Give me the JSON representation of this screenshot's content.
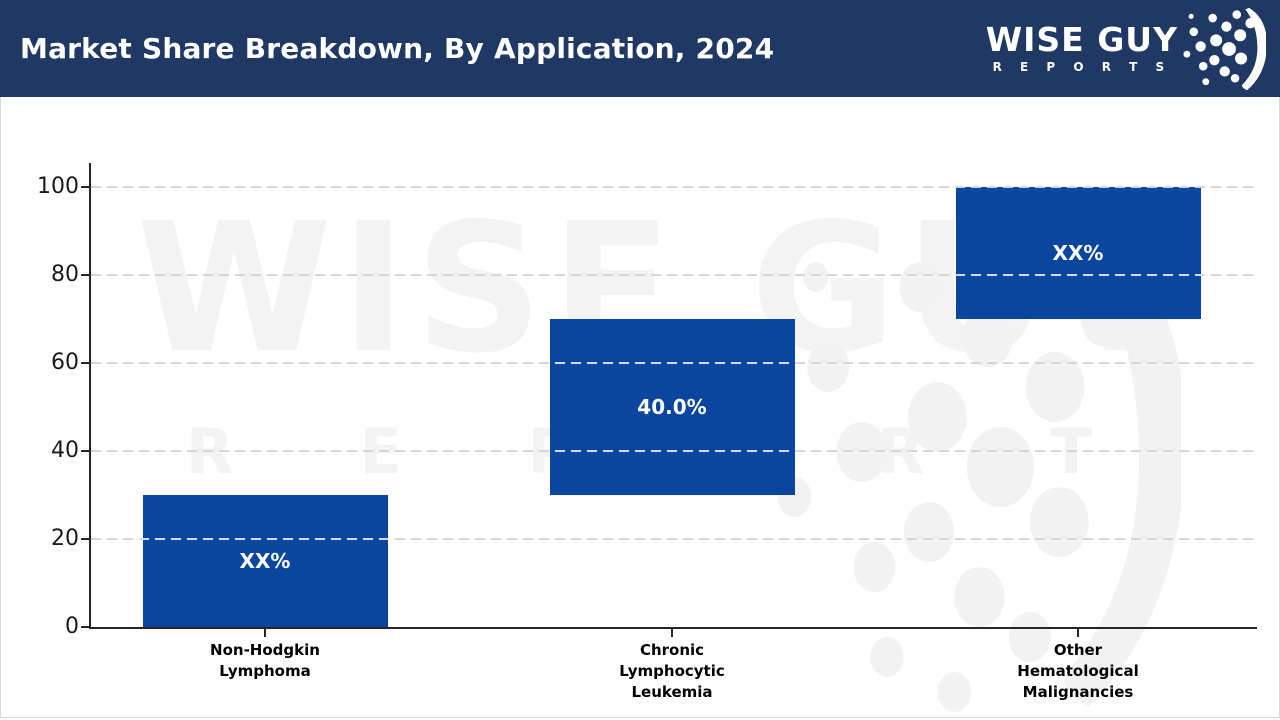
{
  "header": {
    "title": "Market Share Breakdown, By Application, 2024",
    "logo_line1": "WISE GUY",
    "logo_line2": "R E P O R T S"
  },
  "watermark": {
    "line1": "WISE GUY",
    "line2": "R E P O R T S"
  },
  "chart_data": {
    "type": "bar",
    "subtype": "floating-range-bars",
    "title": "Market Share Breakdown, By Application, 2024",
    "categories": [
      [
        "Non-Hodgkin",
        "Lymphoma"
      ],
      [
        "Chronic",
        "Lymphocytic",
        "Leukemia"
      ],
      [
        "Other",
        "Hematological",
        "Malignancies"
      ]
    ],
    "bars": [
      {
        "category": "Non-Hodgkin Lymphoma",
        "label": "XX%",
        "start": 0,
        "end": 30
      },
      {
        "category": "Chronic Lymphocytic Leukemia",
        "label": "40.0%",
        "start": 30,
        "end": 70
      },
      {
        "category": "Other Hematological Malignancies",
        "label": "XX%",
        "start": 70,
        "end": 100
      }
    ],
    "yticks": [
      0,
      20,
      40,
      60,
      80,
      100
    ],
    "ylim": [
      0,
      105
    ],
    "xlabel": "",
    "ylabel": "",
    "legend": "none",
    "grid": {
      "horizontal": true,
      "style": "dashed",
      "above_bars": true
    },
    "colors": {
      "bar": "#0a45a0",
      "bar_label": "#ffffff",
      "header_bg": "#1f3864",
      "grid": "#d6d6d6",
      "axis": "#262626",
      "watermark": "#f3f3f3"
    }
  }
}
